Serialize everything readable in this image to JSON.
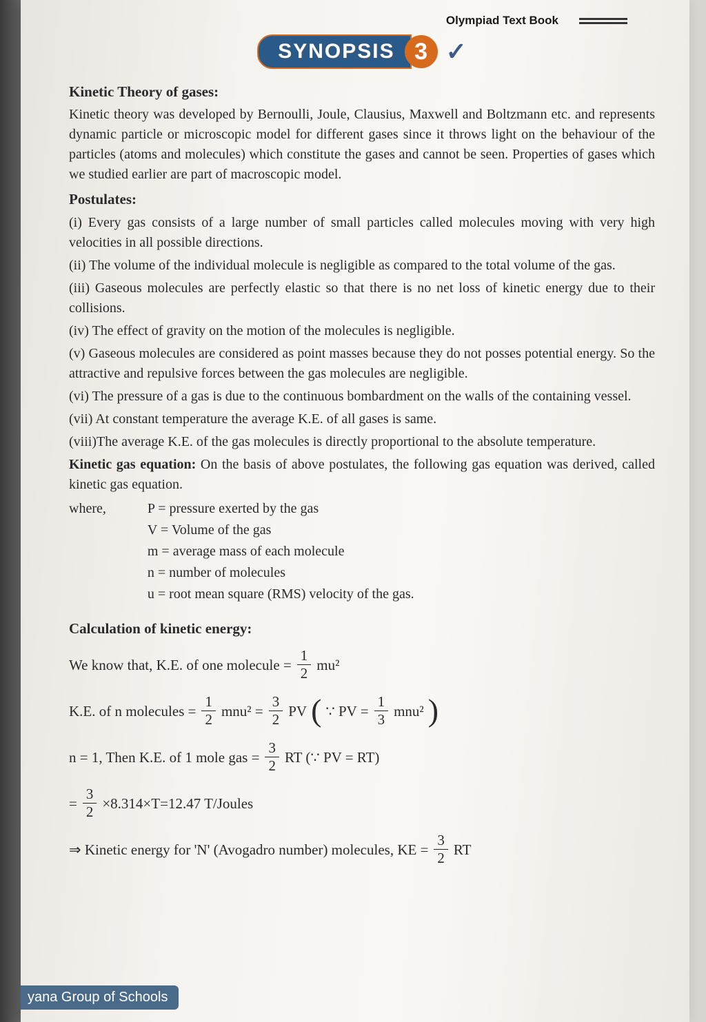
{
  "header": {
    "book_title": "Olympiad Text Book"
  },
  "synopsis": {
    "label": "SYNOPSIS",
    "number": "3",
    "badge_bg": "#2a5a8a",
    "num_bg": "#d86a1e",
    "text_color": "#ffffff"
  },
  "section_title": "Kinetic Theory of gases:",
  "intro": "Kinetic theory was developed by Bernoulli, Joule, Clausius, Maxwell and Boltzmann etc. and represents dynamic particle or microscopic model for different gases since it throws light on the behaviour of the particles (atoms and molecules) which constitute the gases and cannot be seen. Properties of gases which we studied earlier are part of macroscopic model.",
  "postulates_title": "Postulates:",
  "postulates": [
    "(i)  Every gas consists of a large number of small particles called molecules moving with very high velocities in all possible directions.",
    "(ii) The volume of the individual molecule is negligible as compared to the total volume of the gas.",
    "(iii) Gaseous molecules are perfectly elastic so that there is no net loss of kinetic energy due to their collisions.",
    "(iv) The effect of gravity on the motion of the molecules is negligible.",
    "(v) Gaseous molecules are considered as point masses because they do not posses potential energy. So the attractive and repulsive forces between the gas molecules are negligible.",
    "(vi) The pressure of a gas is due to the continuous bombardment on the walls of the containing vessel.",
    "(vii) At constant temperature the average K.E. of all gases is same.",
    "(viii)The average K.E. of the gas molecules is directly proportional to the absolute temperature."
  ],
  "kge": {
    "title": "Kinetic gas equation:",
    "text": " On the basis of above postulates, the following gas equation was derived, called kinetic gas equation."
  },
  "where_label": "where,",
  "defs": [
    "P = pressure exerted by the gas",
    "V = Volume of the gas",
    "m = average mass of each molecule",
    "n = number of molecules",
    "u = root mean square (RMS) velocity of the gas."
  ],
  "calc_title": "Calculation of kinetic energy:",
  "eq1_pre": "We know that, K.E. of one molecule = ",
  "eq1_post": "mu²",
  "eq2_pre": "K.E. of n molecules = ",
  "eq2_mid1": "mnu² =",
  "eq2_mid2": "PV",
  "eq2_because": "∵ PV =",
  "eq2_tail": "mnu²",
  "eq3_pre": "n = 1, Then K.E. of 1 mole gas = ",
  "eq3_mid": "RT (∵ PV = RT)",
  "eq4_pre": "= ",
  "eq4_mid": "×8.314×T=12.47 T/Joules",
  "eq5_pre": "⇒ Kinetic energy for 'N' (Avogadro number) molecules, KE = ",
  "eq5_post": " RT",
  "fracs": {
    "half": {
      "n": "1",
      "d": "2"
    },
    "three_half": {
      "n": "3",
      "d": "2"
    },
    "one_third": {
      "n": "1",
      "d": "3"
    }
  },
  "footer": "yana Group of Schools",
  "colors": {
    "page_bg": "#f5f3ef",
    "text": "#2a2a2a",
    "footer_bg": "#4a6a8a"
  }
}
